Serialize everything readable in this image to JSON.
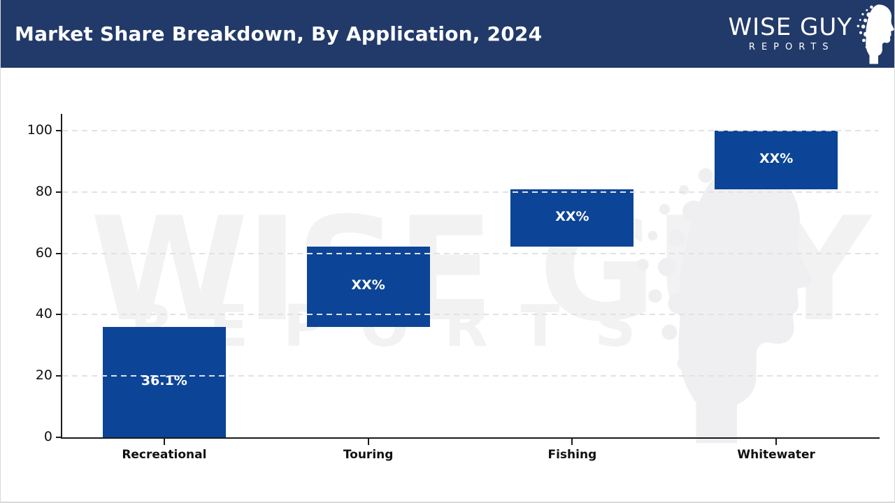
{
  "header": {
    "title": "Market Share Breakdown, By Application, 2024",
    "logo": {
      "line1": "WISE GUY",
      "line2": "REPORTS"
    }
  },
  "watermark": {
    "line1": "WISE GUY",
    "line2": "REPORTS"
  },
  "chart_data": {
    "type": "bar",
    "subtype": "waterfall",
    "title": "Market Share Breakdown, By Application, 2024",
    "categories": [
      "Recreational",
      "Touring",
      "Fishing",
      "Whitewater"
    ],
    "segments": [
      {
        "category": "Recreational",
        "start": 0,
        "end": 36.1,
        "label": "36.1%"
      },
      {
        "category": "Touring",
        "start": 36.1,
        "end": 62.2,
        "label": "XX%"
      },
      {
        "category": "Fishing",
        "start": 62.2,
        "end": 80.9,
        "label": "XX%"
      },
      {
        "category": "Whitewater",
        "start": 80.9,
        "end": 100,
        "label": "XX%"
      }
    ],
    "xlabel": "",
    "ylabel": "",
    "ylim": [
      0,
      105
    ],
    "yticks": [
      0,
      20,
      40,
      60,
      80,
      100
    ],
    "grid": "horizontal-dashed",
    "legend": "none",
    "bar_color": "#0c4497",
    "bar_label_color": "#ffffff",
    "gridline_color": "#e2e2e4",
    "header_color": "#223a69"
  }
}
